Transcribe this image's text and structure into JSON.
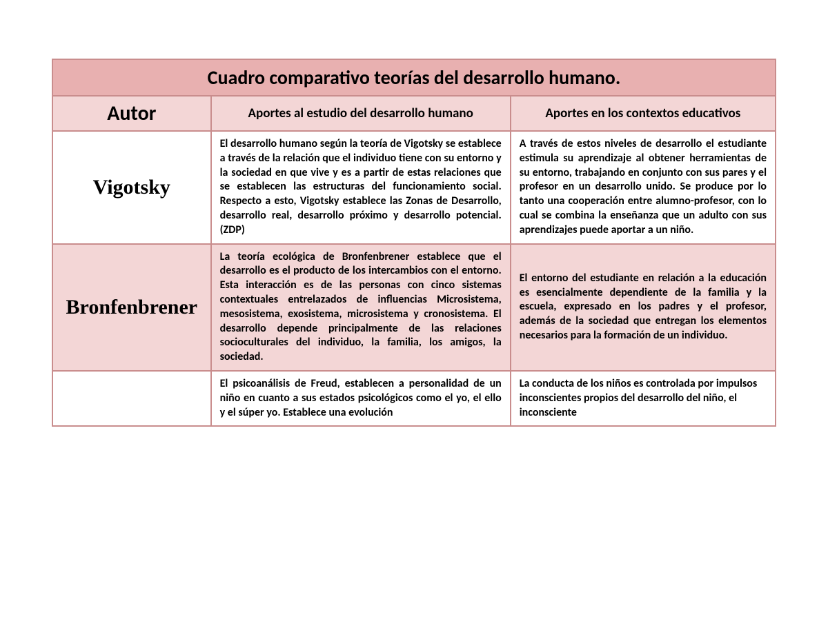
{
  "table": {
    "title": "Cuadro comparativo teorías del desarrollo humano.",
    "headers": {
      "author": "Autor",
      "aportes": "Aportes al estudio del desarrollo humano",
      "contextos": "Aportes en los contextos educativos"
    },
    "rows": [
      {
        "author": "Vigotsky",
        "aportes": "El desarrollo humano según la teoría de Vigotsky se establece a través de la relación que el individuo tiene con su entorno y la sociedad en que vive y es a partir de estas relaciones que se establecen las estructuras del funcionamiento social. Respecto a esto, Vigotsky establece las Zonas de Desarrollo, desarrollo real, desarrollo próximo y desarrollo potencial. (ZDP)",
        "contextos": "A través de estos niveles de desarrollo el estudiante estimula su aprendizaje al obtener herramientas de su entorno, trabajando en conjunto con sus pares y el profesor en un desarrollo unido. Se produce por lo tanto una cooperación entre alumno-profesor, con lo cual se combina la enseñanza que un adulto con sus aprendizajes puede aportar a un niño.",
        "bg": "white"
      },
      {
        "author": "Bronfenbrener",
        "aportes": "La teoría ecológica de Bronfenbrener establece que el desarrollo es el producto de los intercambios con el entorno. Esta interacción es de las personas con cinco sistemas contextuales entrelazados de influencias Microsistema, mesosistema, exosistema, microsistema y cronosistema. El desarrollo depende principalmente de las relaciones socioculturales del individuo, la familia, los amigos, la sociedad.",
        "contextos": "El entorno del estudiante en relación a la educación es esencialmente dependiente de la familia y la escuela, expresado en los padres y el profesor, además de la sociedad que entregan los elementos necesarios para la formación de un individuo.",
        "bg": "pink"
      },
      {
        "author": "",
        "aportes": "El psicoanálisis de Freud, establecen a personalidad de un niño en cuanto a sus estados psicológicos como el yo, el ello y el súper yo. Establece una  evolución",
        "contextos": "La conducta de los niños es controlada por impulsos inconscientes propios del desarrollo del niño, el inconsciente",
        "bg": "white",
        "contextos_justify": "left"
      }
    ],
    "colors": {
      "title_bg": "#e8b0b0",
      "header_bg": "#f3d6d6",
      "row_pink_bg": "#f3d6d6",
      "row_white_bg": "#ffffff",
      "border": "#c98d8d",
      "text": "#000000"
    },
    "fonts": {
      "title_size": 28,
      "header_author_size": 30,
      "header_col_size": 19,
      "author_cell_size": 30,
      "body_size": 16,
      "author_family": "Times New Roman",
      "body_family": "Calibri"
    },
    "column_widths": {
      "author": 230,
      "aportes": 435,
      "contextos": 385
    }
  }
}
